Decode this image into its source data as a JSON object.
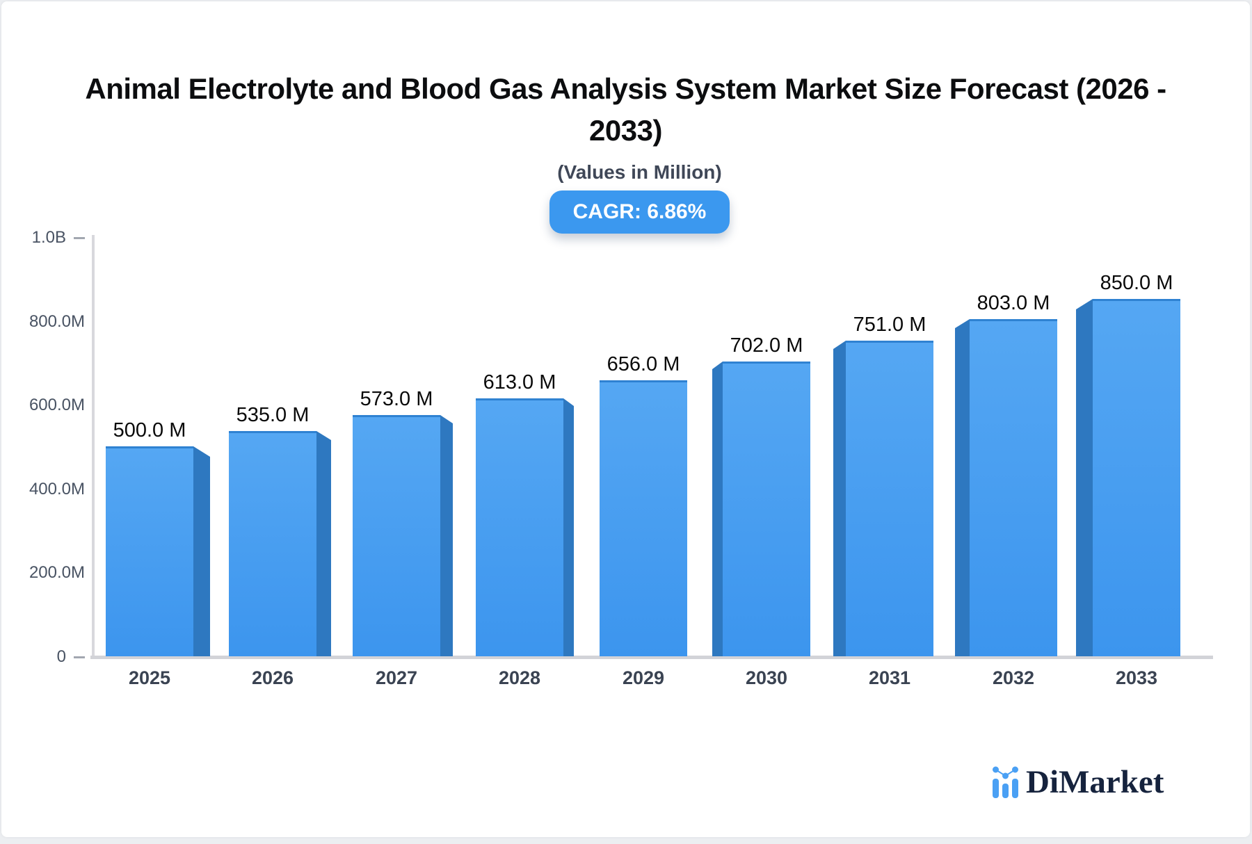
{
  "header": {
    "title_line1": "Animal Electrolyte and Blood Gas Analysis System Market Size Forecast (2026 -",
    "title_line2": "2033)",
    "subtitle": "(Values in Million)",
    "cagr_label": "CAGR: 6.86%"
  },
  "chart_data": {
    "type": "bar",
    "title": "Animal Electrolyte and Blood Gas Analysis System Market Size Forecast (2026 - 2033)",
    "subtitle": "(Values in Million)",
    "cagr_percent": 6.86,
    "categories": [
      "2025",
      "2026",
      "2027",
      "2028",
      "2029",
      "2030",
      "2031",
      "2032",
      "2033"
    ],
    "values_millions": [
      500,
      535,
      573,
      613,
      656,
      702,
      751,
      803,
      850
    ],
    "value_labels": [
      "500.0 M",
      "535.0 M",
      "573.0 M",
      "613.0 M",
      "656.0 M",
      "702.0 M",
      "751.0 M",
      "803.0 M",
      "850.0 M"
    ],
    "y_ticks": [
      {
        "label": "1.0B",
        "value_millions": 1000,
        "dash": true
      },
      {
        "label": "800.0M",
        "value_millions": 800,
        "dash": false
      },
      {
        "label": "600.0M",
        "value_millions": 600,
        "dash": false
      },
      {
        "label": "400.0M",
        "value_millions": 400,
        "dash": false
      },
      {
        "label": "200.0M",
        "value_millions": 200,
        "dash": false
      },
      {
        "label": "0",
        "value_millions": 0,
        "dash": true
      }
    ],
    "ylim_millions": [
      0,
      1000
    ],
    "grid": false,
    "legend": "none",
    "style": "3d-perspective-bars",
    "bar_face_color": "#3c95ee",
    "bar_face_highlight": "#55a7f3",
    "bar_side_color": "#2e78c0",
    "axis_line_color": "#d5d6db",
    "badge_color": "#3b98ef"
  },
  "branding": {
    "logo_text": "DiMarket",
    "logo_icon": "bar-chart-with-dots-icon",
    "logo_icon_color": "#4aa0f4",
    "logo_text_color": "#16233d"
  }
}
